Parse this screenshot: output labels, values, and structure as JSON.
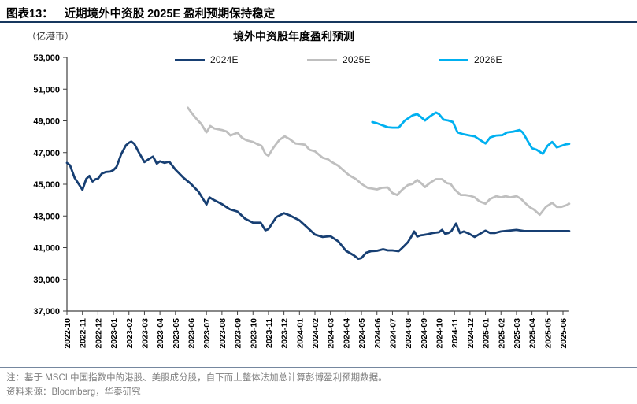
{
  "figure": {
    "title_prefix": "图表13：",
    "title_rest": "近期境外中资股 2025E 盈利预期保持稳定",
    "unit_label": "（亿港币）",
    "chart_title": "境外中资股年度盈利预测",
    "note": "注：基于 MSCI 中国指数中的港股、美股成分股，自下而上整体法加总计算彭博盈利预期数据。",
    "source": "资料来源：Bloomberg，华泰研究"
  },
  "colors": {
    "navy": "#173F73",
    "gray": "#BFBFBF",
    "cyan": "#00B0F0",
    "title_rule": "#17375E",
    "axis": "#404040",
    "note_text": "#808080"
  },
  "chart_data": {
    "type": "line",
    "title": "境外中资股年度盈利预测",
    "ylabel": "（亿港币）",
    "ylim": [
      37000,
      53000
    ],
    "ytick_step": 2000,
    "ytick_labels": [
      "37,000",
      "39,000",
      "41,000",
      "43,000",
      "45,000",
      "47,000",
      "49,000",
      "51,000",
      "53,000"
    ],
    "x_categories": [
      "2022-10",
      "2022-11",
      "2022-12",
      "2023-01",
      "2023-02",
      "2023-03",
      "2023-04",
      "2023-05",
      "2023-06",
      "2023-07",
      "2023-08",
      "2023-09",
      "2023-10",
      "2023-11",
      "2023-12",
      "2024-01",
      "2024-02",
      "2024-03",
      "2024-04",
      "2024-05",
      "2024-06",
      "2024-07",
      "2024-08",
      "2024-09",
      "2024-10",
      "2024-11",
      "2024-12",
      "2025-01",
      "2025-02",
      "2025-03",
      "2025-04",
      "2025-05",
      "2025-06"
    ],
    "x_unit": "month index (0 = 2022-10, fractional = within month)",
    "grid": false,
    "legend_position": "top",
    "series": [
      {
        "name": "2024E",
        "color": "#173F73",
        "points": [
          [
            0,
            46350
          ],
          [
            0.2,
            46200
          ],
          [
            0.5,
            45400
          ],
          [
            0.8,
            44950
          ],
          [
            1.0,
            44650
          ],
          [
            1.25,
            45350
          ],
          [
            1.45,
            45525
          ],
          [
            1.65,
            45175
          ],
          [
            1.85,
            45325
          ],
          [
            2.0,
            45350
          ],
          [
            2.25,
            45675
          ],
          [
            2.5,
            45775
          ],
          [
            2.8,
            45800
          ],
          [
            3.0,
            45900
          ],
          [
            3.2,
            46100
          ],
          [
            3.5,
            46900
          ],
          [
            3.8,
            47450
          ],
          [
            4.0,
            47625
          ],
          [
            4.15,
            47700
          ],
          [
            4.35,
            47550
          ],
          [
            4.65,
            47000
          ],
          [
            5.0,
            46400
          ],
          [
            5.3,
            46600
          ],
          [
            5.55,
            46750
          ],
          [
            5.8,
            46300
          ],
          [
            6.0,
            46450
          ],
          [
            6.3,
            46350
          ],
          [
            6.6,
            46425
          ],
          [
            7.0,
            45925
          ],
          [
            7.5,
            45425
          ],
          [
            8.0,
            45025
          ],
          [
            8.5,
            44525
          ],
          [
            9.0,
            43725
          ],
          [
            9.2,
            44175
          ],
          [
            9.45,
            44025
          ],
          [
            9.7,
            43900
          ],
          [
            10.0,
            43750
          ],
          [
            10.5,
            43425
          ],
          [
            11.0,
            43275
          ],
          [
            11.5,
            42825
          ],
          [
            12.0,
            42575
          ],
          [
            12.5,
            42575
          ],
          [
            12.8,
            42100
          ],
          [
            13.0,
            42175
          ],
          [
            13.5,
            42925
          ],
          [
            14.0,
            43175
          ],
          [
            14.4,
            43025
          ],
          [
            15.0,
            42725
          ],
          [
            15.5,
            42275
          ],
          [
            16.0,
            41825
          ],
          [
            16.5,
            41675
          ],
          [
            17.0,
            41725
          ],
          [
            17.5,
            41400
          ],
          [
            18.0,
            40800
          ],
          [
            18.5,
            40525
          ],
          [
            18.8,
            40300
          ],
          [
            19.0,
            40350
          ],
          [
            19.3,
            40675
          ],
          [
            19.6,
            40775
          ],
          [
            20.0,
            40800
          ],
          [
            20.4,
            40900
          ],
          [
            20.7,
            40825
          ],
          [
            21.0,
            40825
          ],
          [
            21.4,
            40775
          ],
          [
            21.7,
            41050
          ],
          [
            22.0,
            41350
          ],
          [
            22.2,
            41675
          ],
          [
            22.4,
            42025
          ],
          [
            22.6,
            41700
          ],
          [
            22.8,
            41775
          ],
          [
            23.0,
            41800
          ],
          [
            23.3,
            41850
          ],
          [
            23.6,
            41925
          ],
          [
            24.0,
            41975
          ],
          [
            24.2,
            42125
          ],
          [
            24.4,
            41875
          ],
          [
            24.6,
            41925
          ],
          [
            24.8,
            42050
          ],
          [
            25.0,
            42375
          ],
          [
            25.1,
            42525
          ],
          [
            25.35,
            41925
          ],
          [
            25.6,
            42025
          ],
          [
            25.85,
            41925
          ],
          [
            26.0,
            41850
          ],
          [
            26.3,
            41675
          ],
          [
            26.6,
            41850
          ],
          [
            27.0,
            42075
          ],
          [
            27.3,
            41925
          ],
          [
            27.6,
            41925
          ],
          [
            28.0,
            42025
          ],
          [
            28.5,
            42075
          ],
          [
            29.0,
            42125
          ],
          [
            29.5,
            42050
          ],
          [
            30.0,
            42050
          ],
          [
            30.5,
            42050
          ],
          [
            31.0,
            42050
          ],
          [
            31.5,
            42050
          ],
          [
            32.0,
            42050
          ],
          [
            32.4,
            42050
          ]
        ]
      },
      {
        "name": "2025E",
        "color": "#BFBFBF",
        "points": [
          [
            7.8,
            49825
          ],
          [
            8.1,
            49425
          ],
          [
            8.4,
            49075
          ],
          [
            8.65,
            48825
          ],
          [
            9.0,
            48275
          ],
          [
            9.25,
            48675
          ],
          [
            9.5,
            48525
          ],
          [
            10.0,
            48425
          ],
          [
            10.3,
            48325
          ],
          [
            10.55,
            48075
          ],
          [
            10.8,
            48175
          ],
          [
            11.0,
            48250
          ],
          [
            11.3,
            47925
          ],
          [
            11.6,
            47775
          ],
          [
            12.0,
            47675
          ],
          [
            12.3,
            47525
          ],
          [
            12.55,
            47425
          ],
          [
            12.8,
            46925
          ],
          [
            13.0,
            46800
          ],
          [
            13.3,
            47275
          ],
          [
            13.7,
            47800
          ],
          [
            14.05,
            48025
          ],
          [
            14.4,
            47825
          ],
          [
            14.75,
            47575
          ],
          [
            15.0,
            47550
          ],
          [
            15.35,
            47500
          ],
          [
            15.65,
            47175
          ],
          [
            16.0,
            47075
          ],
          [
            16.5,
            46675
          ],
          [
            16.85,
            46575
          ],
          [
            17.0,
            46450
          ],
          [
            17.5,
            46175
          ],
          [
            17.9,
            45825
          ],
          [
            18.2,
            45575
          ],
          [
            18.65,
            45325
          ],
          [
            19.0,
            45025
          ],
          [
            19.4,
            44775
          ],
          [
            20.0,
            44675
          ],
          [
            20.3,
            44775
          ],
          [
            20.7,
            44800
          ],
          [
            21.0,
            44450
          ],
          [
            21.3,
            44325
          ],
          [
            21.65,
            44675
          ],
          [
            22.0,
            44950
          ],
          [
            22.3,
            45025
          ],
          [
            22.6,
            45275
          ],
          [
            22.9,
            45025
          ],
          [
            23.1,
            44825
          ],
          [
            23.4,
            45075
          ],
          [
            23.8,
            45325
          ],
          [
            24.2,
            45325
          ],
          [
            24.5,
            45075
          ],
          [
            24.75,
            45025
          ],
          [
            25.0,
            44675
          ],
          [
            25.4,
            44325
          ],
          [
            25.7,
            44325
          ],
          [
            26.0,
            44275
          ],
          [
            26.3,
            44175
          ],
          [
            26.6,
            43925
          ],
          [
            27.0,
            43775
          ],
          [
            27.3,
            44075
          ],
          [
            27.7,
            44250
          ],
          [
            28.0,
            44175
          ],
          [
            28.3,
            44250
          ],
          [
            28.6,
            44175
          ],
          [
            29.0,
            44250
          ],
          [
            29.3,
            44075
          ],
          [
            29.6,
            43775
          ],
          [
            29.9,
            43525
          ],
          [
            30.1,
            43425
          ],
          [
            30.5,
            43075
          ],
          [
            30.9,
            43575
          ],
          [
            31.3,
            43825
          ],
          [
            31.6,
            43575
          ],
          [
            31.9,
            43575
          ],
          [
            32.2,
            43675
          ],
          [
            32.4,
            43775
          ]
        ]
      },
      {
        "name": "2026E",
        "color": "#00B0F0",
        "points": [
          [
            19.7,
            48925
          ],
          [
            20.0,
            48850
          ],
          [
            20.4,
            48700
          ],
          [
            20.7,
            48600
          ],
          [
            21.0,
            48575
          ],
          [
            21.4,
            48575
          ],
          [
            21.8,
            49025
          ],
          [
            22.3,
            49350
          ],
          [
            22.6,
            49425
          ],
          [
            22.8,
            49275
          ],
          [
            23.1,
            49025
          ],
          [
            23.4,
            49275
          ],
          [
            23.8,
            49525
          ],
          [
            24.0,
            49425
          ],
          [
            24.3,
            49075
          ],
          [
            24.6,
            49025
          ],
          [
            24.9,
            48925
          ],
          [
            25.2,
            48275
          ],
          [
            25.5,
            48175
          ],
          [
            26.0,
            48075
          ],
          [
            26.3,
            48025
          ],
          [
            26.6,
            47825
          ],
          [
            27.0,
            47575
          ],
          [
            27.3,
            47950
          ],
          [
            27.7,
            48075
          ],
          [
            28.1,
            48100
          ],
          [
            28.4,
            48275
          ],
          [
            28.8,
            48325
          ],
          [
            29.2,
            48425
          ],
          [
            29.4,
            48275
          ],
          [
            29.7,
            47775
          ],
          [
            30.0,
            47275
          ],
          [
            30.3,
            47175
          ],
          [
            30.7,
            46925
          ],
          [
            31.0,
            47425
          ],
          [
            31.3,
            47675
          ],
          [
            31.6,
            47325
          ],
          [
            31.9,
            47425
          ],
          [
            32.2,
            47525
          ],
          [
            32.4,
            47550
          ]
        ]
      }
    ]
  },
  "legend": {
    "items": [
      "2024E",
      "2025E",
      "2026E"
    ]
  }
}
